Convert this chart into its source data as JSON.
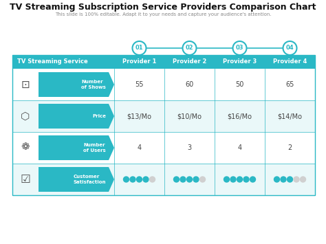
{
  "title": "TV Streaming Subscription Service Providers Comparison Chart",
  "subtitle": "This slide is 100% editable. Adapt it to your needs and capture your audience's attention.",
  "teal": "#2ab8c5",
  "white": "#ffffff",
  "text_dark": "#444444",
  "providers": [
    "Provider 1",
    "Provider 2",
    "Provider 3",
    "Provider 4"
  ],
  "provider_nums": [
    "01",
    "02",
    "03",
    "04"
  ],
  "rows": [
    {
      "label": "Number\nof Shows",
      "values": [
        "55",
        "60",
        "50",
        "65"
      ],
      "type": "text"
    },
    {
      "label": "Price",
      "values": [
        "$13/Mo",
        "$10/Mo",
        "$16/Mo",
        "$14/Mo"
      ],
      "type": "text"
    },
    {
      "label": "Number\nof Users",
      "values": [
        "4",
        "3",
        "4",
        "2"
      ],
      "type": "text"
    },
    {
      "label": "Customer\nSatisfaction",
      "values": [
        4,
        4,
        5,
        3
      ],
      "type": "dots",
      "total": 5
    }
  ],
  "header_label": "TV Streaming Service"
}
